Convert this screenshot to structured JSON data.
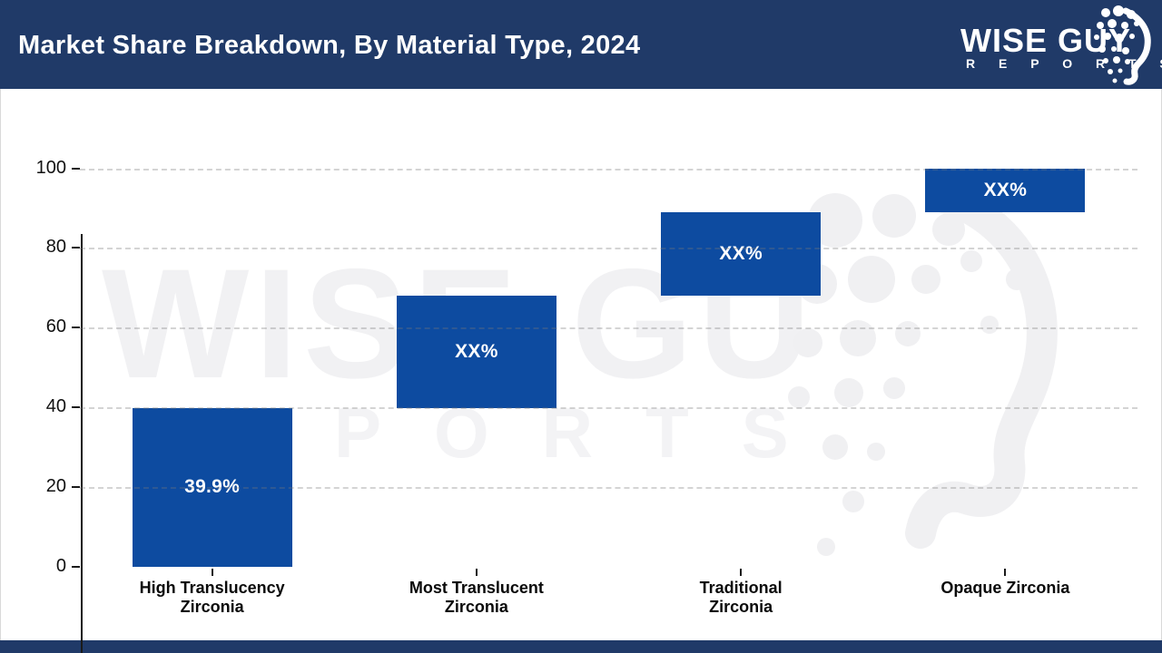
{
  "header": {
    "title": "Market Share Breakdown, By Material Type, 2024",
    "brand": {
      "line1": "WISE GUY",
      "line2": "REPORTS",
      "line2_display": "R E P O R T S"
    }
  },
  "watermark": {
    "line1": "WISE GU",
    "line2": "PORTS"
  },
  "colors": {
    "header_bg": "#203a68",
    "bar_fill": "#0d4ba0",
    "bar_label_text": "#ffffff",
    "axis": "#1a1a1a",
    "watermark": "#f1f1f3"
  },
  "chart_data": {
    "type": "bar",
    "subtype": "waterfall",
    "title": "Market Share Breakdown, By Material Type, 2024",
    "unit": "%",
    "grid": "horizontal dashed",
    "legend": null,
    "xlabel": "",
    "ylabel": "",
    "ylim": [
      0,
      106
    ],
    "yticks": [
      0,
      20,
      40,
      60,
      80,
      100
    ],
    "bars": [
      {
        "category_lines": [
          "High Translucency",
          "Zirconia"
        ],
        "start": 0,
        "end": 39.9,
        "label": "39.9%"
      },
      {
        "category_lines": [
          "Most Translucent",
          "Zirconia"
        ],
        "start": 39.9,
        "end": 68,
        "label": "XX%"
      },
      {
        "category_lines": [
          "Traditional",
          "Zirconia"
        ],
        "start": 68,
        "end": 89,
        "label": "XX%"
      },
      {
        "category_lines": [
          "Opaque Zirconia"
        ],
        "start": 89,
        "end": 100,
        "label": "XX%"
      }
    ]
  }
}
